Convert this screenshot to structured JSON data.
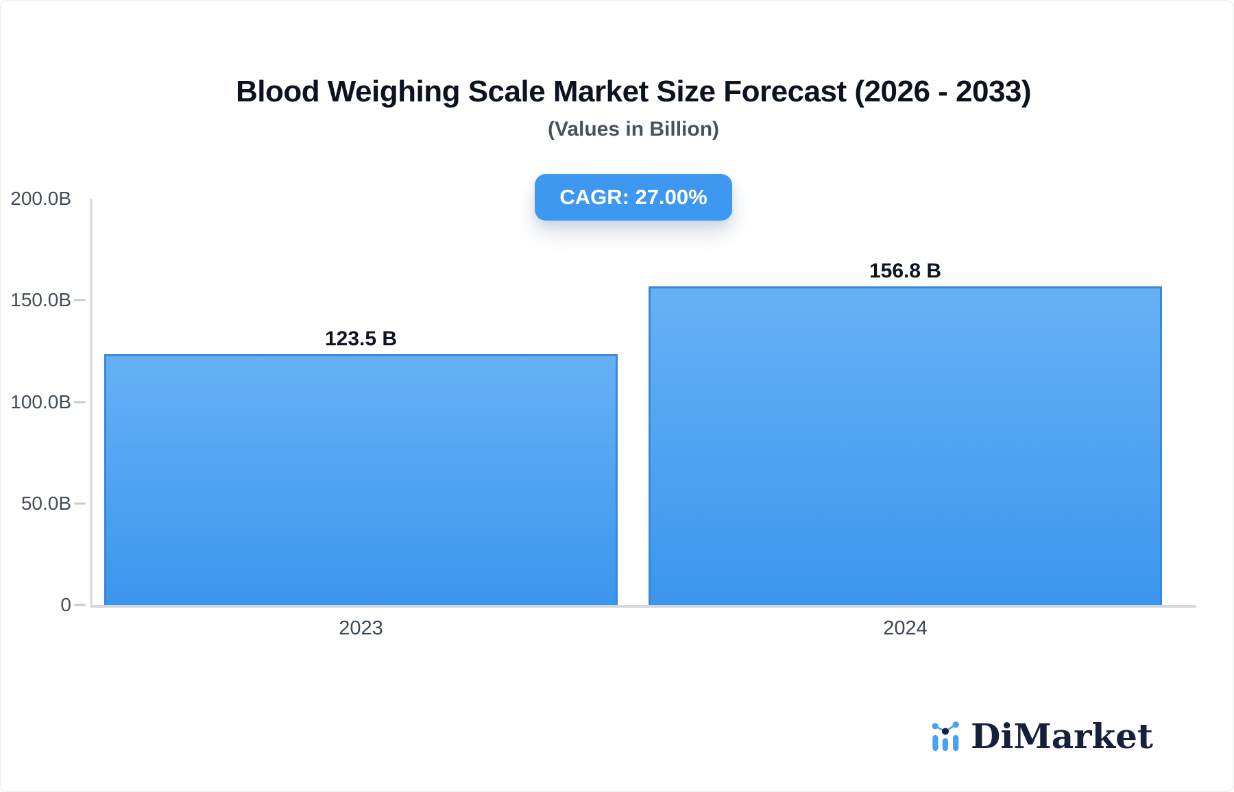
{
  "chart_data": {
    "type": "bar",
    "title": "Blood Weighing Scale Market Size Forecast (2026 - 2033)",
    "subtitle": "(Values in Billion)",
    "badge": "CAGR: 27.00%",
    "categories": [
      "2023",
      "2024"
    ],
    "values": [
      123.5,
      156.8
    ],
    "value_labels": [
      "123.5 B",
      "156.8 B"
    ],
    "ylim": [
      0,
      200
    ],
    "yticks": [
      {
        "value": 200,
        "label": "200.0B",
        "dash": false
      },
      {
        "value": 150,
        "label": "150.0B",
        "dash": true
      },
      {
        "value": 100,
        "label": "100.0B",
        "dash": true
      },
      {
        "value": 50,
        "label": "50.0B",
        "dash": true
      },
      {
        "value": 0,
        "label": "0",
        "dash": true
      }
    ],
    "grid": false,
    "legend": "none",
    "xlabel": "",
    "ylabel": ""
  },
  "logo": {
    "text": "DiMarket",
    "icon": "mini-bar-chart-icon"
  },
  "theme": {
    "badge_bg": "#3f98f0",
    "bar_fill_top": "#66b1f4",
    "bar_fill_bottom": "#3b96ee",
    "bar_border": "#3a86d8",
    "axis_line": "#d5d8db",
    "title_color": "#0b1220",
    "logo_navy": "#15203c",
    "logo_blue": "#4aa0f1"
  }
}
